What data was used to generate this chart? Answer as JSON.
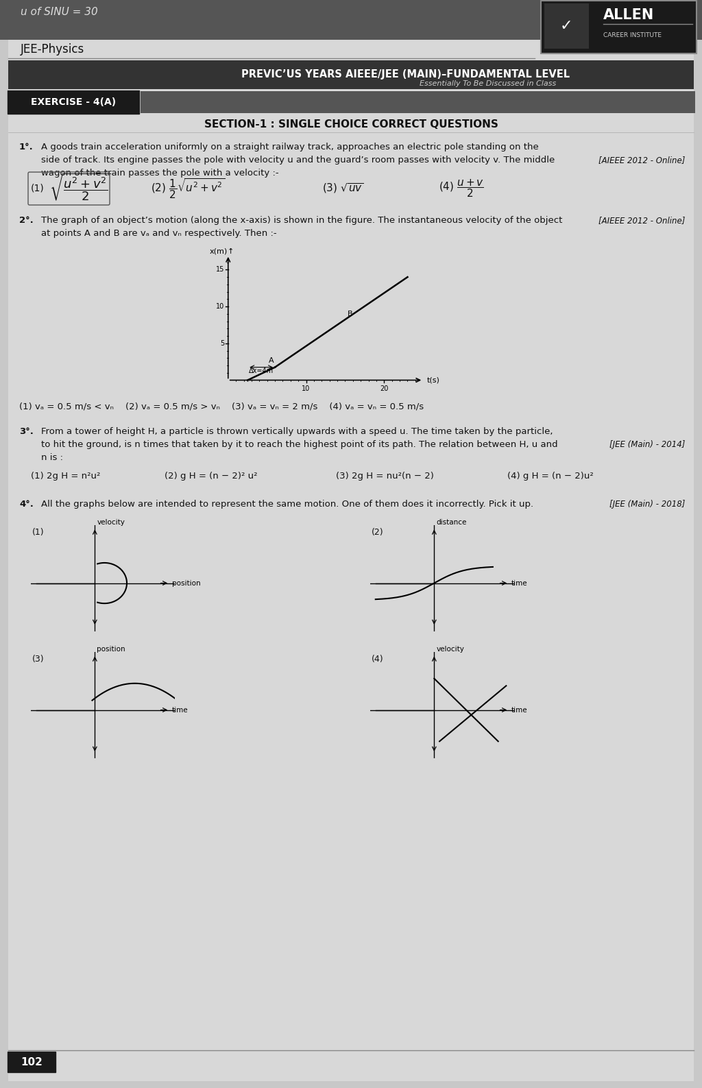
{
  "bg_color": "#c8c8c8",
  "page_bg": "#d8d8d8",
  "text_color": "#111111",
  "header_dark_color": "#2a2a2a",
  "header_mid_color": "#444444",
  "top_scribble": "u of SINU = 30",
  "jee_physics": "JEE-Physics",
  "exercise_label": "EXERCISE - 4(A)",
  "header_main_text": "PREVIC’US YEARS AIEEE/JEE (MAIN)–FUNDAMENTAL LEVEL",
  "header_sub_text": "Essentially To Be Discussed in Class",
  "section_title": "SECTION-1 : SINGLE CHOICE CORRECT QUESTIONS",
  "q1_num": "1°.",
  "q1_line1": "A goods train acceleration uniformly on a straight railway track, approaches an electric pole standing on the",
  "q1_line2": "side of track. Its engine passes the pole with velocity u and the guard’s room passes with velocity v. The middle",
  "q1_line3": "wagon of the train passes the pole with a velocity :-",
  "q1_ref": "[AIEEE 2012 - Online]",
  "q2_num": "2°.",
  "q2_line1": "The graph of an object’s motion (along the x-axis) is shown in the figure. The instantaneous velocity of the object",
  "q2_line2": "at points A and B are vₐ and vₙ respectively. Then :-",
  "q2_ref": "[AIEEE 2012 - Online]",
  "q2_opts": "(1) vₐ = 0.5 m/s < vₙ    (2) vₐ = 0.5 m/s > vₙ    (3) vₐ = vₙ = 2 m/s    (4) vₐ = vₙ = 0.5 m/s",
  "q3_num": "3°.",
  "q3_line1": "From a tower of height H, a particle is thrown vertically upwards with a speed u. The time taken by the particle,",
  "q3_line2": "to hit the ground, is n times that taken by it to reach the highest point of its path. The relation between H, u and",
  "q3_line3": "n is :",
  "q3_ref": "[JEE (Main) - 2014]",
  "q4_num": "4°.",
  "q4_line1": "All the graphs below are intended to represent the same motion. One of them does it incorrectly. Pick it up.",
  "q4_ref": "[JEE (Main) - 2018]",
  "page_number": "102"
}
